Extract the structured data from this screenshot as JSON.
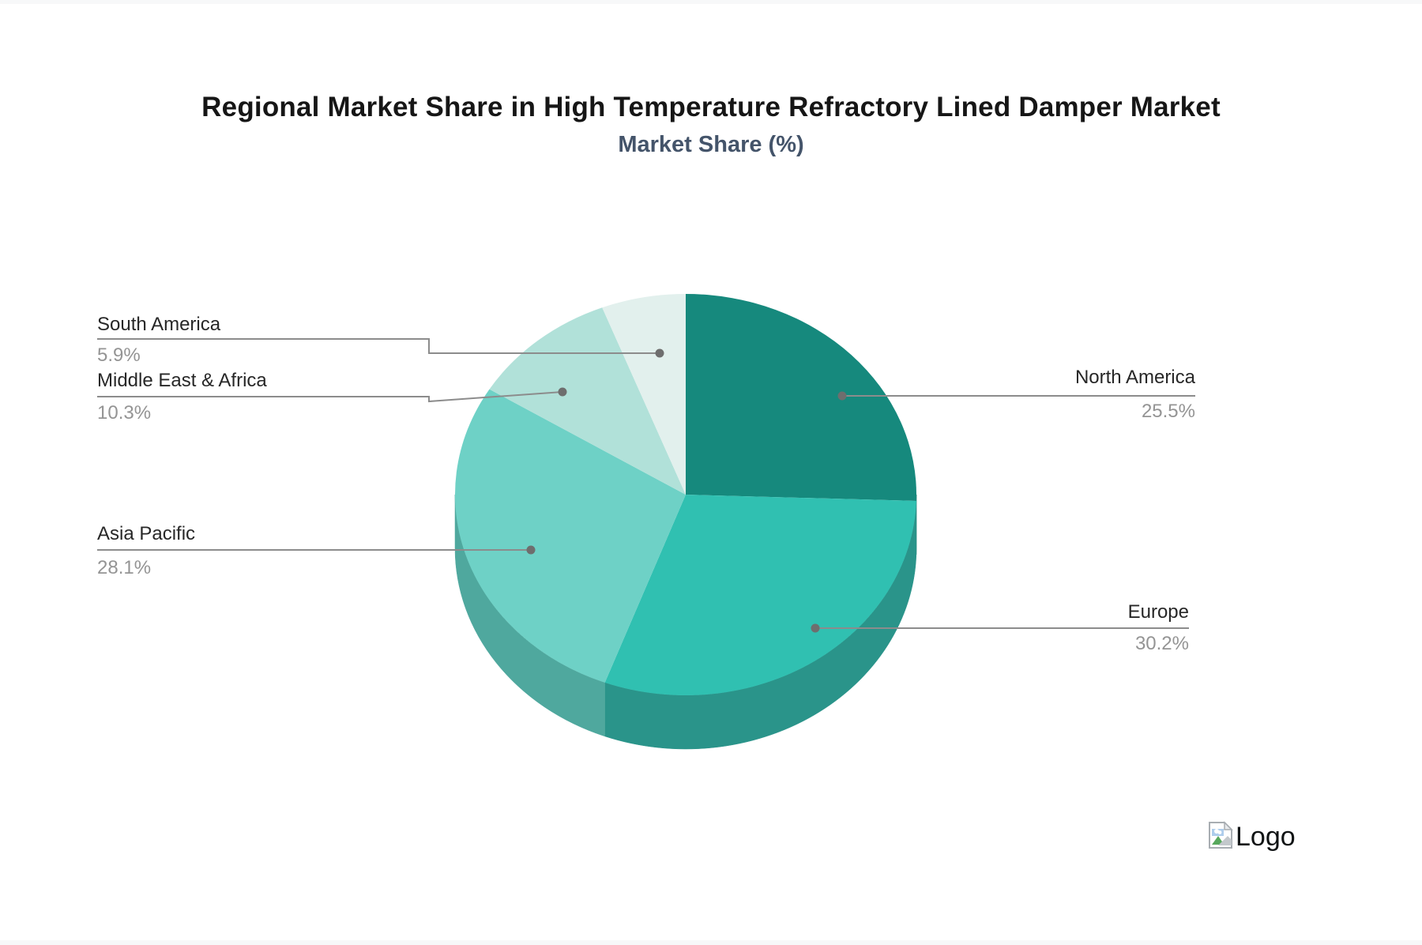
{
  "page": {
    "title": "Regional Market Share in High Temperature Refractory Lined Damper Market",
    "subtitle": "Market Share (%)",
    "logo_alt_text": "Logo"
  },
  "chart_data": {
    "type": "pie",
    "title": "Regional Market Share in High Temperature Refractory Lined Damper Market",
    "subtitle": "Market Share (%)",
    "unit": "%",
    "style": "3d-pie",
    "start_angle_deg": 0,
    "direction": "clockwise",
    "label_position": "outside-leader-lines",
    "legend": "none",
    "colors": {
      "leader_line": "#8c8c8c",
      "leader_dot": "#6e6e6e",
      "label_text": "#272727",
      "value_text": "#949494",
      "title_text": "#161616",
      "subtitle_text": "#44546a"
    },
    "slices": [
      {
        "label": "North America",
        "value": 25.5,
        "value_text": "25.5%",
        "color": "#16897d",
        "side_color": "#117065"
      },
      {
        "label": "Europe",
        "value": 30.2,
        "value_text": "30.2%",
        "color": "#30c0b1",
        "side_color": "#2a948a"
      },
      {
        "label": "Asia Pacific",
        "value": 28.1,
        "value_text": "28.1%",
        "color": "#6ed1c6",
        "side_color": "#4fa89e"
      },
      {
        "label": "Middle East & Africa",
        "value": 10.3,
        "value_text": "10.3%",
        "color": "#b1e1d9",
        "side_color": "#8fb8b1"
      },
      {
        "label": "South America",
        "value": 5.9,
        "value_text": "5.9%",
        "color": "#e2f0ed",
        "side_color": "#b9c8c4"
      }
    ]
  }
}
